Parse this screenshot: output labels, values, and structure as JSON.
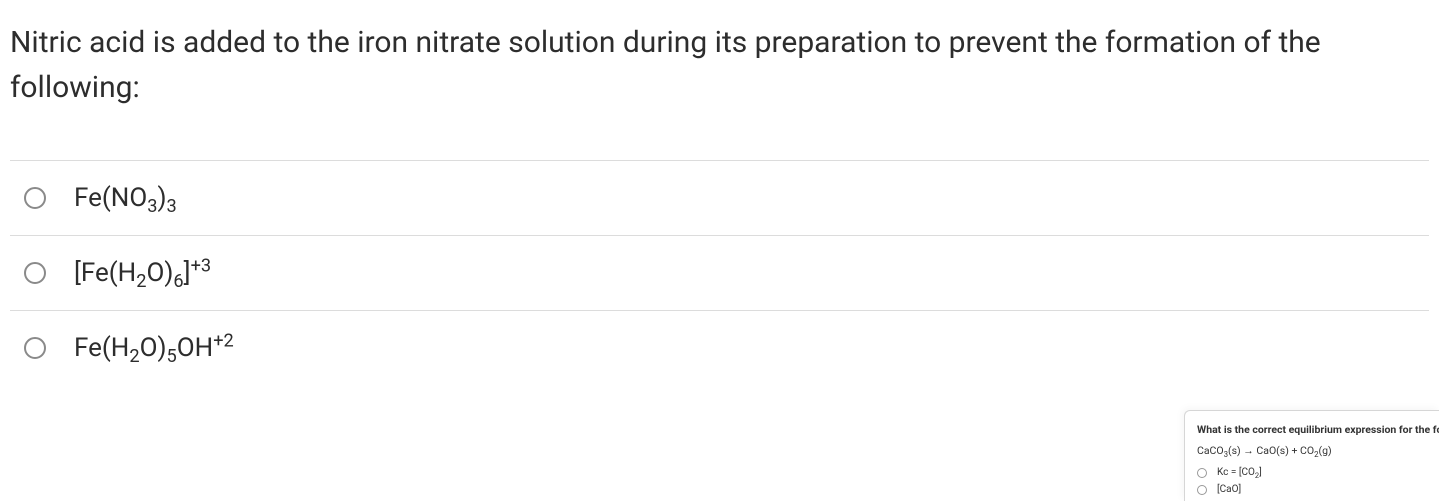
{
  "question": {
    "text": "Nitric acid is added to the iron nitrate solution during its preparation to prevent the formation of the following:"
  },
  "options": [
    {
      "formula_html": "Fe(NO<sub>3</sub>)<sub>3</sub>"
    },
    {
      "formula_html": "[Fe(H<sub>2</sub>O)<sub>6</sub>]<sup>+3</sup>"
    },
    {
      "formula_html": "Fe(H<sub>2</sub>O)<sub>5</sub>OH<sup>+2</sup>"
    }
  ],
  "popup": {
    "title": "What is the correct equilibrium expression for the follow",
    "equation_html": "CaCO<sub>3</sub>(s) &rarr; CaO(s) + CO<sub>2</sub>(g)",
    "opts": [
      {
        "html": "Kc = [CO<sub>2</sub>]"
      },
      {
        "html": "[CaO]"
      }
    ]
  },
  "colors": {
    "text": "#2d2d2d",
    "divider": "#dcdcdc",
    "radio_border": "#8a8a8a",
    "background": "#ffffff",
    "popup_border": "#d6d6d6"
  }
}
